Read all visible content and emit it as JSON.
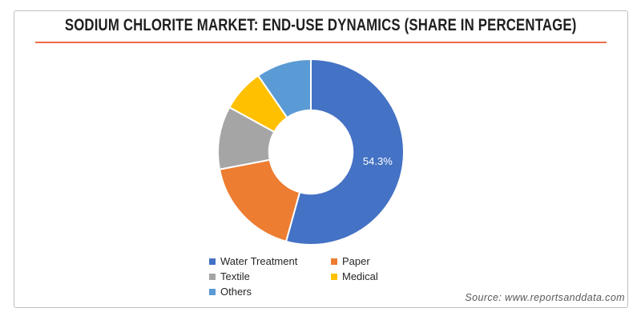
{
  "header": {
    "title": "SODIUM CHLORITE MARKET: END-USE DYNAMICS (SHARE IN PERCENTAGE)",
    "underline_color": "#ED6B47"
  },
  "chart_data": {
    "type": "pie",
    "subtype": "donut",
    "title": "SODIUM CHLORITE MARKET: END-USE DYNAMICS (SHARE IN PERCENTAGE)",
    "categories": [
      "Water Treatment",
      "Paper",
      "Textile",
      "Medical",
      "Others"
    ],
    "values": [
      54.3,
      17.7,
      11.0,
      7.4,
      9.6
    ],
    "colors": [
      "#4472C4",
      "#ED7D31",
      "#A5A5A5",
      "#FFC000",
      "#5B9BD5"
    ],
    "data_labels": [
      {
        "slice_index": 0,
        "text": "54.3%"
      }
    ],
    "data_label_color": "#FFFFFF",
    "slice_separator_color": "#FFFFFF",
    "start_angle_deg": 0,
    "direction": "clockwise",
    "donut_hole_ratio": 0.45,
    "legend_position": "bottom"
  },
  "footer": {
    "source": "Source: www.reportsanddata.com"
  }
}
